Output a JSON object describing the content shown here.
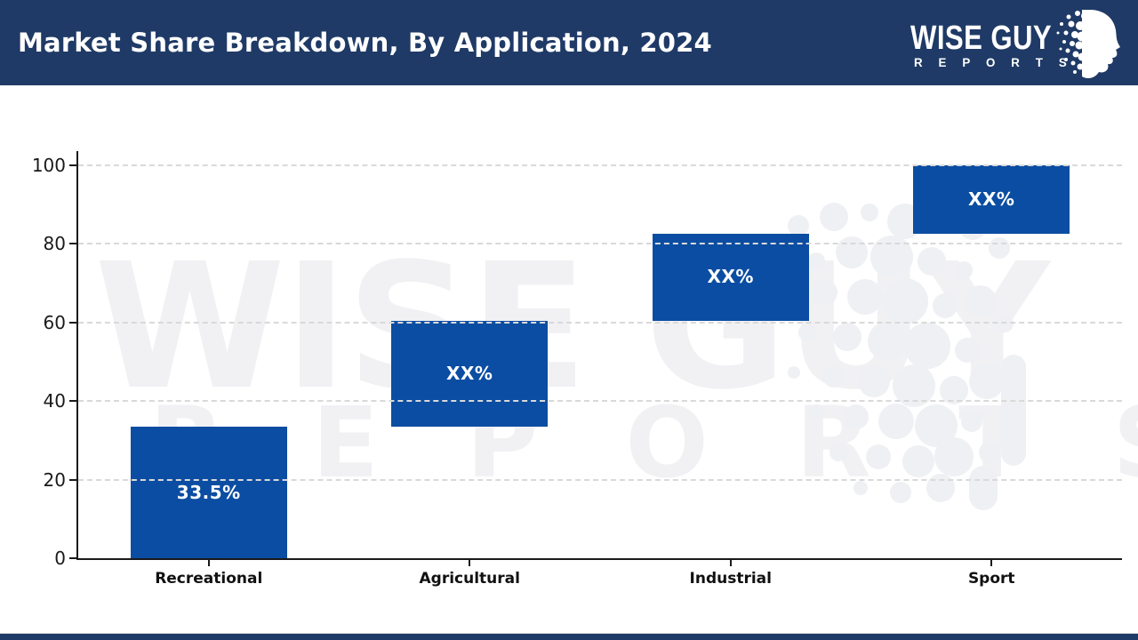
{
  "header": {
    "title": "Market Share Breakdown, By Application, 2024",
    "bg_color": "#1f3a66",
    "logo": {
      "line1": "WISE GUY",
      "line2": "R E P O R T S"
    }
  },
  "watermark": {
    "line1": "WISE GUY",
    "line2": "R E P O R T S"
  },
  "chart_data": {
    "type": "bar",
    "subtype": "waterfall",
    "title": "Market Share Breakdown, By Application, 2024",
    "categories": [
      "Recreational",
      "Agricultural",
      "Industrial",
      "Sport"
    ],
    "segments": [
      {
        "category": "Recreational",
        "start": 0,
        "end": 33.5,
        "label": "33.5%"
      },
      {
        "category": "Agricultural",
        "start": 33.5,
        "end": 60.5,
        "label": "XX%"
      },
      {
        "category": "Industrial",
        "start": 60.5,
        "end": 82.5,
        "label": "XX%"
      },
      {
        "category": "Sport",
        "start": 82.5,
        "end": 100,
        "label": "XX%"
      }
    ],
    "ylim": [
      0,
      100
    ],
    "yticks": [
      0,
      20,
      40,
      60,
      80,
      100
    ],
    "grid": "horizontal-dashed",
    "legend": "none",
    "bar_color": "#0b4da2",
    "bar_label_color": "#ffffff",
    "axis_color": "#1a1a1a",
    "grid_color": "#d9d9d9"
  }
}
